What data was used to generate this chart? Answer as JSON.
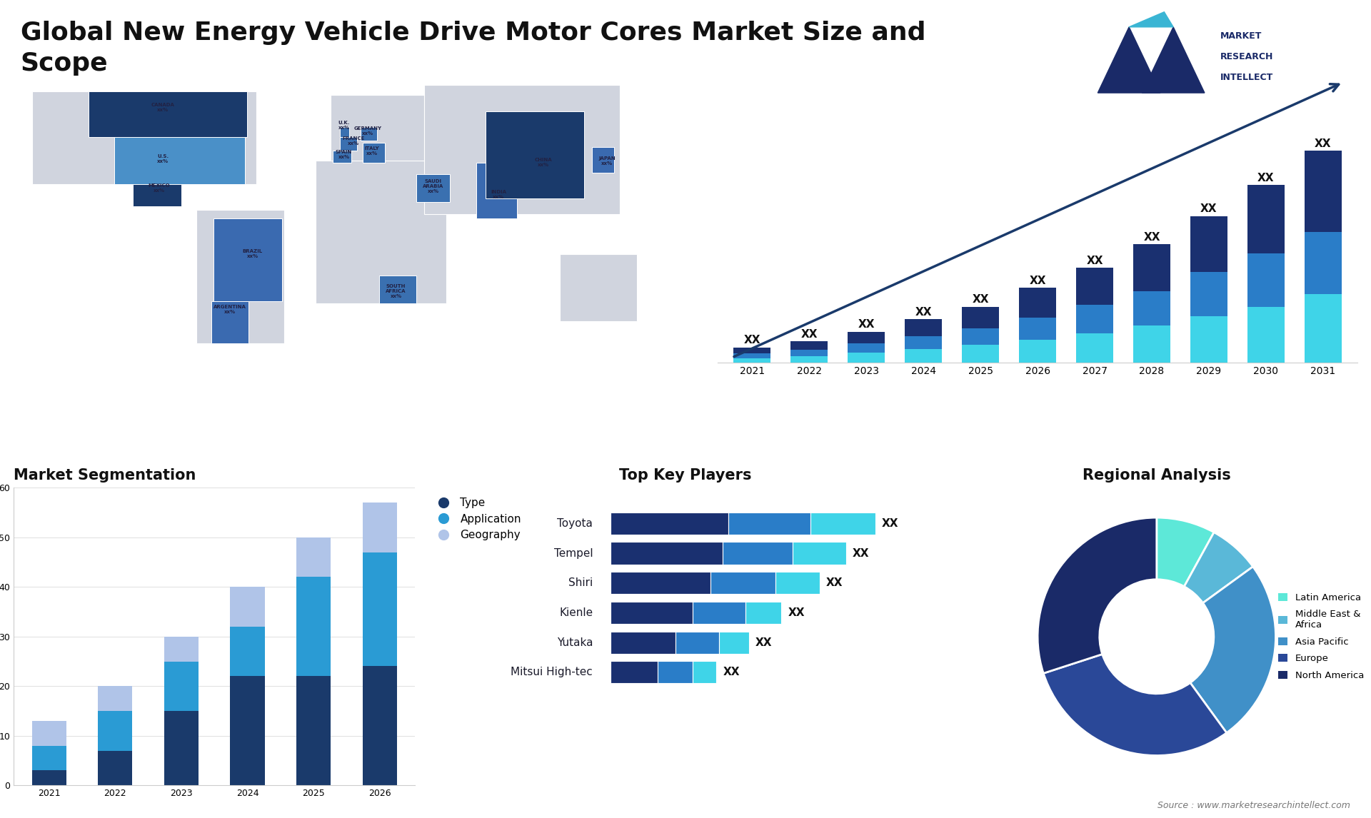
{
  "title": "Global New Energy Vehicle Drive Motor Cores Market Size and\nScope",
  "title_fontsize": 26,
  "background_color": "#ffffff",
  "bar_chart_years": [
    2021,
    2022,
    2023,
    2024,
    2025,
    2026,
    2027,
    2028,
    2029,
    2030,
    2031
  ],
  "bar_seg_bottom": [
    1.5,
    2.2,
    3.2,
    4.5,
    5.8,
    7.5,
    9.5,
    12,
    15,
    18,
    22
  ],
  "bar_seg_middle": [
    1.5,
    2.0,
    3.0,
    4.0,
    5.2,
    7.0,
    9.0,
    11,
    14,
    17,
    20
  ],
  "bar_seg_top": [
    2.0,
    2.8,
    3.8,
    5.5,
    7.0,
    9.5,
    12,
    15,
    18,
    22,
    26
  ],
  "bar_color_bottom": "#3fd4e8",
  "bar_color_middle": "#2a7dc8",
  "bar_color_top": "#1a3070",
  "seg_years": [
    2021,
    2022,
    2023,
    2024,
    2025,
    2026
  ],
  "seg_type": [
    3,
    7,
    15,
    22,
    22,
    24
  ],
  "seg_application": [
    5,
    8,
    10,
    10,
    20,
    23
  ],
  "seg_geography": [
    5,
    5,
    5,
    8,
    8,
    10
  ],
  "seg_color_type": "#1a3a6b",
  "seg_color_application": "#2a9bd4",
  "seg_color_geography": "#b0c4e8",
  "seg_ylim": [
    0,
    60
  ],
  "seg_legend": [
    "Type",
    "Application",
    "Geography"
  ],
  "players": [
    "Toyota",
    "Tempel",
    "Shiri",
    "Kienle",
    "Yutaka",
    "Mitsui High-tec"
  ],
  "players_dark": [
    40,
    38,
    34,
    28,
    22,
    16
  ],
  "players_mid": [
    28,
    24,
    22,
    18,
    15,
    12
  ],
  "players_light": [
    22,
    18,
    15,
    12,
    10,
    8
  ],
  "player_color_dark": "#1a3070",
  "player_color_mid": "#2a7dc8",
  "player_color_light": "#3fd4e8",
  "pie_values": [
    8,
    7,
    25,
    30,
    30
  ],
  "pie_colors": [
    "#5de8d8",
    "#5ab8d8",
    "#4090c8",
    "#2a4898",
    "#1a2a68"
  ],
  "pie_labels": [
    "Latin America",
    "Middle East &\nAfrica",
    "Asia Pacific",
    "Europe",
    "North America"
  ],
  "source_text": "Source : www.marketresearchintellect.com"
}
